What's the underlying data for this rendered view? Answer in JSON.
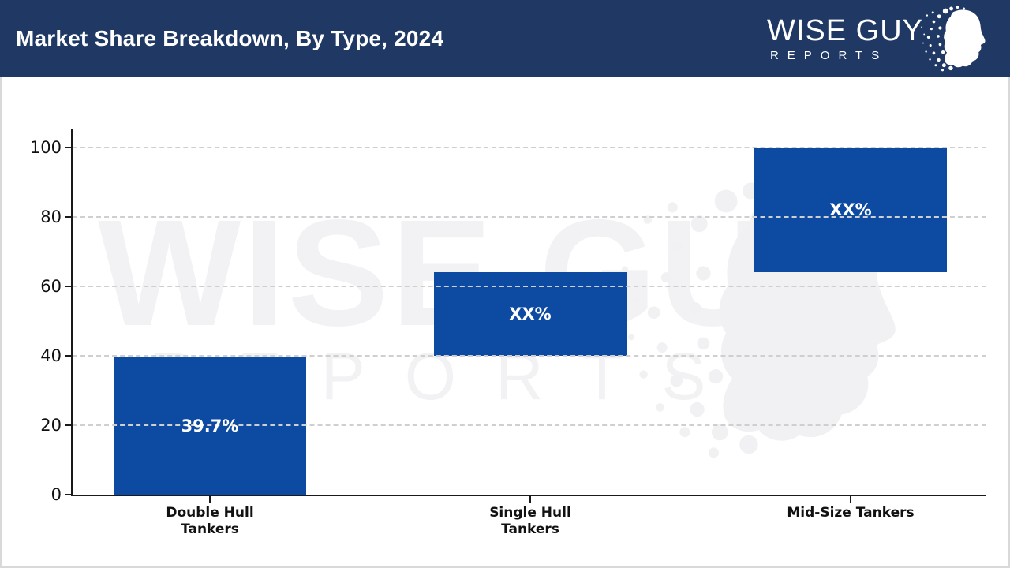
{
  "header": {
    "title": "Market Share Breakdown, By Type, 2024",
    "background": "#1f3864",
    "logo": {
      "line1": "WISE GUY",
      "line2": "REPORTS"
    }
  },
  "watermark": {
    "line1": "WISE GUY",
    "line2": "REPORTS",
    "color": "#f2f2f4"
  },
  "chart_data": {
    "type": "bar",
    "variant": "floating-waterfall",
    "title": "Market Share Breakdown, By Type, 2024",
    "categories": [
      [
        "Double Hull",
        "Tankers"
      ],
      [
        "Single Hull",
        "Tankers"
      ],
      [
        "Mid-Size Tankers"
      ]
    ],
    "series": [
      {
        "name": "Double Hull Tankers",
        "start": 0,
        "end": 39.7,
        "label": "39.7%"
      },
      {
        "name": "Single Hull Tankers",
        "start": 40,
        "end": 64,
        "label": "XX%"
      },
      {
        "name": "Mid-Size Tankers",
        "start": 64,
        "end": 100,
        "label": "XX%"
      }
    ],
    "ylim": [
      0,
      105
    ],
    "yticks": [
      0,
      20,
      40,
      60,
      80,
      100
    ],
    "xlabel": "",
    "ylabel": "",
    "grid": true,
    "grid_style": "dashed",
    "legend": false,
    "bar_color": "#0d4aa2",
    "value_label_color": "#ffffff",
    "axis_color": "#1a1a1a"
  }
}
